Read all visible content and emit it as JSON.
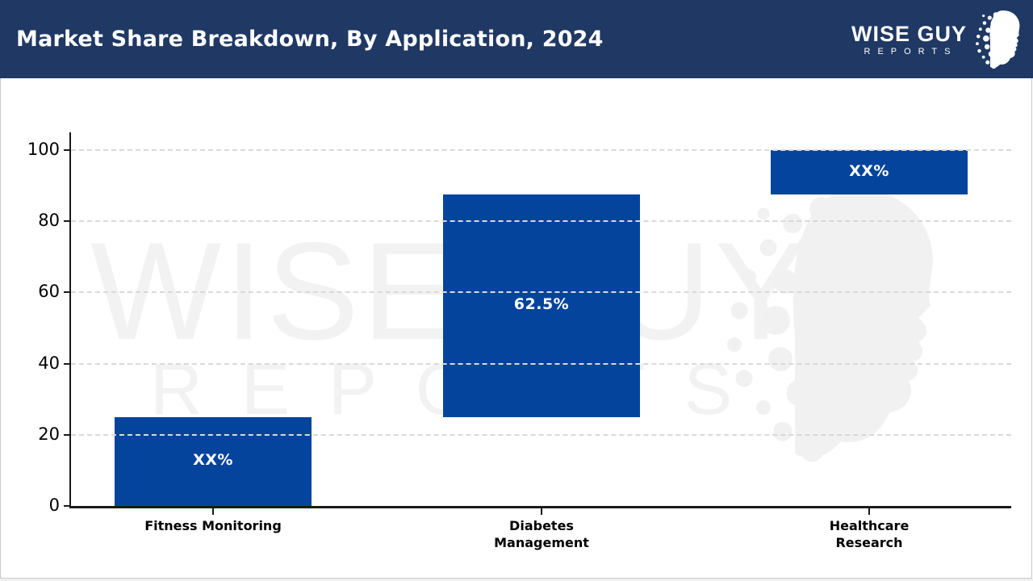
{
  "header": {
    "title": "Market Share Breakdown, By Application, 2024",
    "bg_color": "#1f3864",
    "logo": {
      "line1": "WISE GUY",
      "line2": "REPORTS"
    }
  },
  "watermark": {
    "line1": "WISE GUY",
    "line2": "REPORTS"
  },
  "chart_data": {
    "type": "bar",
    "subtype": "waterfall",
    "title": "Market Share Breakdown, By Application, 2024",
    "categories": [
      "Fitness Monitoring",
      "Diabetes\nManagement",
      "Healthcare\nResearch"
    ],
    "bars": [
      {
        "category": "Fitness Monitoring",
        "start": 0,
        "end": 25,
        "label": "XX%"
      },
      {
        "category": "Diabetes Management",
        "start": 25,
        "end": 87.5,
        "label": "62.5%"
      },
      {
        "category": "Healthcare Research",
        "start": 87.5,
        "end": 100,
        "label": "XX%"
      }
    ],
    "ylim": [
      0,
      100
    ],
    "yticks": [
      0,
      20,
      40,
      60,
      80,
      100
    ],
    "xlabel": "",
    "ylabel": "",
    "grid": "horizontal-dashed",
    "legend": "none",
    "bar_color": "#05449c",
    "gridline_color": "#d9d9d9"
  }
}
